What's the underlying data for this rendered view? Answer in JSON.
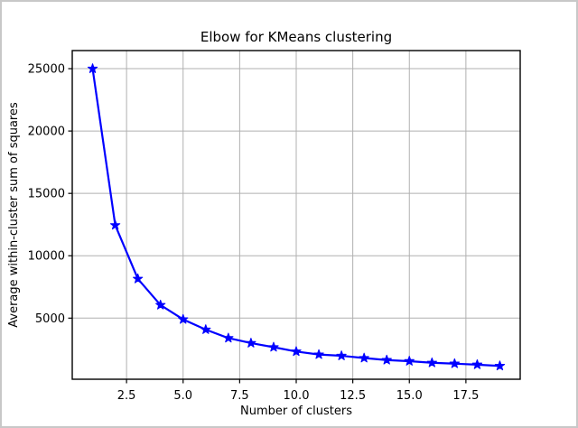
{
  "figure": {
    "background_color": "#ffffff",
    "border_color": "#c8c8c8"
  },
  "chart_data": {
    "type": "line",
    "title": "Elbow for KMeans clustering",
    "xlabel": "Number of clusters",
    "ylabel": "Average within-cluster sum of squares",
    "x": [
      1,
      2,
      3,
      4,
      5,
      6,
      7,
      8,
      9,
      10,
      11,
      12,
      13,
      14,
      15,
      16,
      17,
      18,
      19
    ],
    "y": [
      25000,
      12450,
      8150,
      6050,
      4900,
      4080,
      3400,
      3000,
      2670,
      2320,
      2080,
      1980,
      1800,
      1640,
      1550,
      1420,
      1350,
      1270,
      1170
    ],
    "xlim": [
      0.1,
      19.9
    ],
    "ylim": [
      100,
      26450
    ],
    "xticks": [
      2.5,
      5.0,
      7.5,
      10.0,
      12.5,
      15.0,
      17.5
    ],
    "yticks": [
      5000,
      10000,
      15000,
      20000,
      25000
    ],
    "grid": true,
    "legend": "none",
    "marker": "star",
    "line_color": "#0000ff",
    "marker_color": "#0000ff",
    "grid_color": "#b0b0b0",
    "spine_color": "#000000",
    "text_color": "#000000"
  }
}
